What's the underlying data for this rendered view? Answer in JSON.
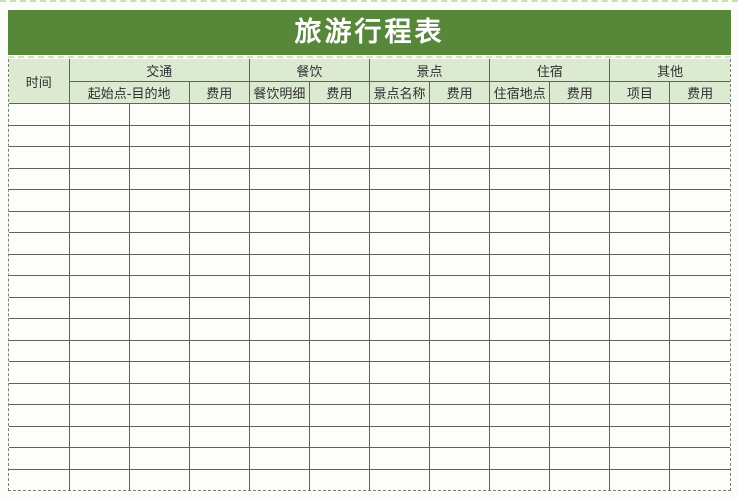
{
  "page": {
    "title": "旅游行程表"
  },
  "colors": {
    "title_bg": "#578839",
    "title_text": "#ffffff",
    "header_bg": "#dcead2",
    "grid_line": "#60645e",
    "outer_dashed_line": "#7b8076",
    "top_dashed_line": "#cadfb4"
  },
  "header": {
    "time_label": "时间",
    "groups": [
      {
        "label": "交通",
        "sub": [
          "起始点-目的地",
          "费用"
        ]
      },
      {
        "label": "餐饮",
        "sub": [
          "餐饮明细",
          "费用"
        ]
      },
      {
        "label": "景点",
        "sub": [
          "景点名称",
          "费用"
        ]
      },
      {
        "label": "住宿",
        "sub": [
          "住宿地点",
          "费用"
        ]
      },
      {
        "label": "其他",
        "sub": [
          "项目",
          "费用"
        ]
      }
    ]
  },
  "body": {
    "row_count": 18,
    "column_count": 12,
    "empty_cell": ""
  }
}
